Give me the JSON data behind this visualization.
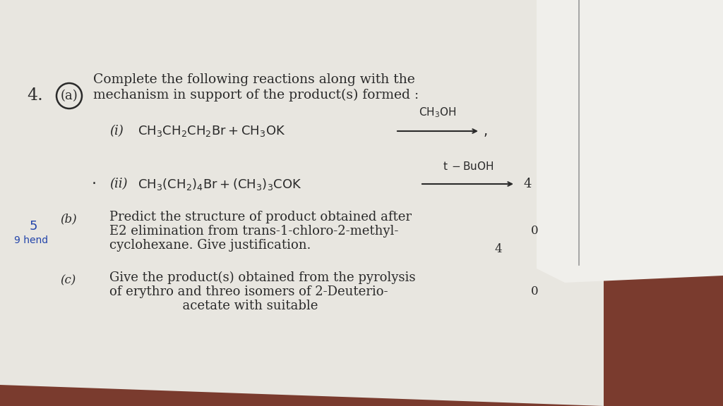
{
  "bg_color": "#7a3b2e",
  "paper_color": "#e8e6e0",
  "white_card_color": "#f0efeb",
  "text_color": "#2a2a2a",
  "handwriting_color": "#2244aa",
  "question_number": "4.",
  "part_a_label": "(a)",
  "heading_line1": "Complete the following reactions along with the",
  "heading_line2": "mechanism in support of the product(s) formed :",
  "reaction_i_label": "(i)",
  "reaction_i_chem": "CH₃CH₂CH₂Br + CH₃OK",
  "reaction_i_arrow_label": "CH₃OH",
  "reaction_ii_label": "(ii)",
  "reaction_ii_chem": "CH₃(CH₂)₄Br + (CH₃)₃COK",
  "reaction_ii_arrow_label": "t–BuOH",
  "reaction_ii_mark": "4",
  "part_b_line1": "Predict the structure of product obtained after",
  "part_b_line2": "E2 elimination from trans-1-chloro-2-methyl-",
  "part_b_mark1": "0",
  "part_b_line3": "cyclohexane. Give justification.",
  "part_b_mark2": "4",
  "part_c_line1": "Give the product(s) obtained from the pyrolysis",
  "part_c_line2": "of erythro and threo isomers of 2-Deuterio-",
  "part_c_mark": "0",
  "part_c_line3": "                  acetate with suitable"
}
